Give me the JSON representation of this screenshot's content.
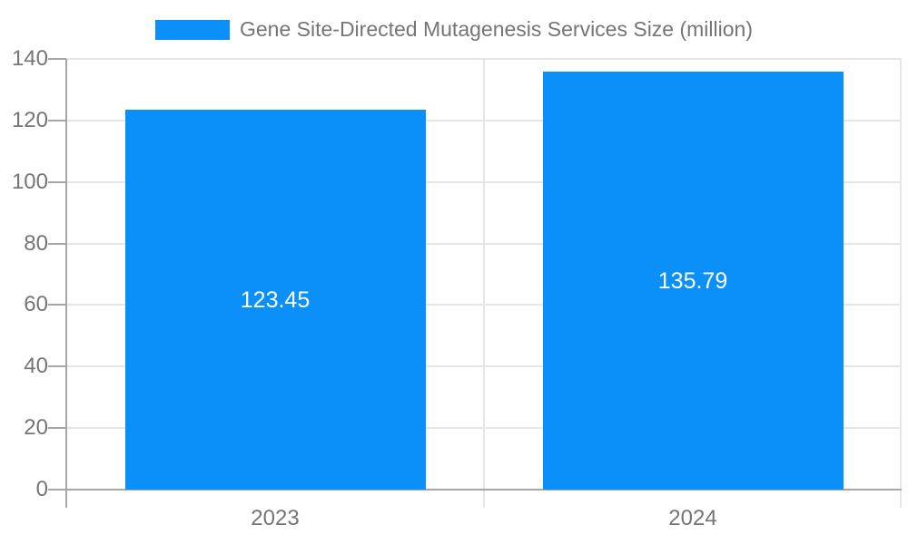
{
  "chart_data": {
    "type": "bar",
    "title": "",
    "series_name": "Gene Site-Directed Mutagenesis Services Size (million)",
    "categories": [
      "2023",
      "2024"
    ],
    "values": [
      123.45,
      135.79
    ],
    "value_labels": [
      "123.45",
      "135.79"
    ],
    "xlabel": "",
    "ylabel": "",
    "ylim": [
      0,
      140
    ],
    "ytick_step": 20,
    "yticks": [
      0,
      20,
      40,
      60,
      80,
      100,
      120,
      140
    ],
    "grid": true,
    "legend_position": "top",
    "colors": {
      "bar": "#0b90f9",
      "bar_label": "#ffffff",
      "axis": "#a6a6a6",
      "grid": "#e6e6e6",
      "tick_text": "#757575"
    }
  }
}
